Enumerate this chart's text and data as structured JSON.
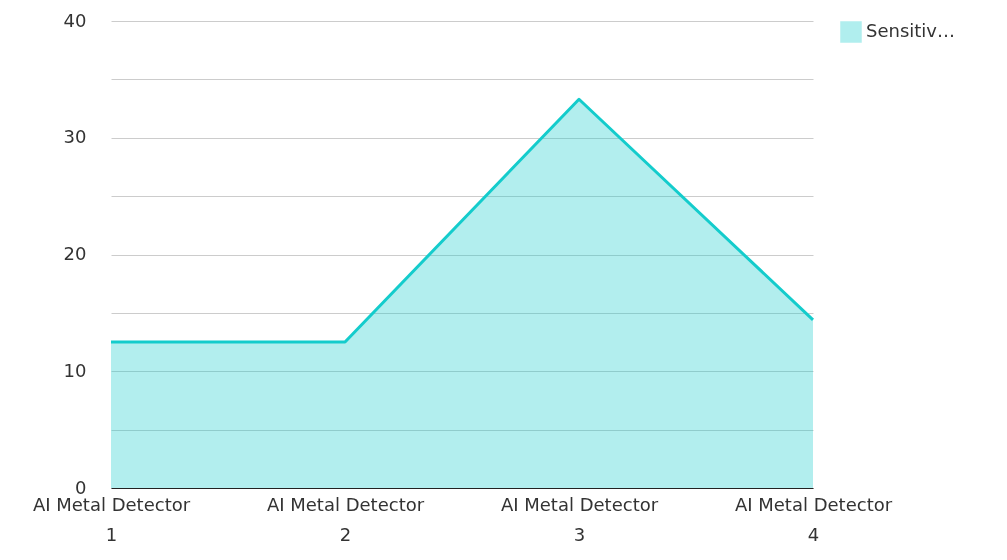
{
  "chart_data": {
    "type": "area",
    "categories": [
      "AI Metal Detector\n1",
      "AI Metal Detector\n2",
      "AI Metal Detector\n3",
      "AI Metal Detector\n4"
    ],
    "series": [
      {
        "name": "Sensitiv…",
        "color": "#14cccc",
        "values": [
          12.5,
          12.5,
          33.3,
          14.4
        ]
      }
    ],
    "ylim": [
      0,
      40
    ],
    "yticks": [
      0,
      {
        "value": 5,
        "label": null
      },
      10,
      {
        "value": 15,
        "label": null
      },
      20,
      {
        "value": 25,
        "label": null
      },
      30,
      {
        "value": 35,
        "label": null
      },
      40
    ],
    "grid": "y",
    "legend": "top right"
  }
}
